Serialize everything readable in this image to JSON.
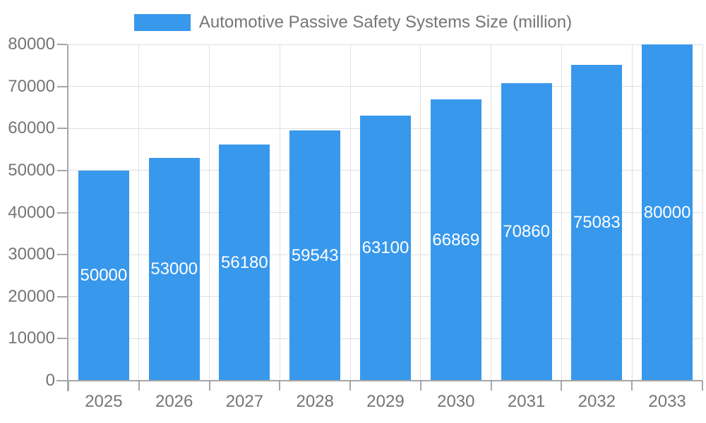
{
  "legend": {
    "label": "Automotive Passive Safety Systems Size (million)"
  },
  "chart_data": {
    "type": "bar",
    "title": "Automotive Passive Safety Systems Size (million)",
    "categories": [
      "2025",
      "2026",
      "2027",
      "2028",
      "2029",
      "2030",
      "2031",
      "2032",
      "2033"
    ],
    "values": [
      50000,
      53000,
      56180,
      59543,
      63100,
      66869,
      70860,
      75083,
      80000
    ],
    "ylim": [
      0,
      80000
    ],
    "ytick_step": 10000,
    "ytick_labels": [
      "0",
      "10000",
      "20000",
      "30000",
      "40000",
      "50000",
      "60000",
      "70000",
      "80000"
    ],
    "xlabel": "",
    "ylabel": "",
    "grid": true,
    "legend_position": "top-center",
    "bar_value_labels_inside": true
  },
  "colors": {
    "bar": "#3898EC",
    "bar_label_text": "#FFFFFF",
    "axis_text": "#757575",
    "grid_line": "#E0E0E0",
    "axis_line": "#A6A6A6",
    "tick": "#A6A6A6",
    "background": "#FFFFFF"
  }
}
